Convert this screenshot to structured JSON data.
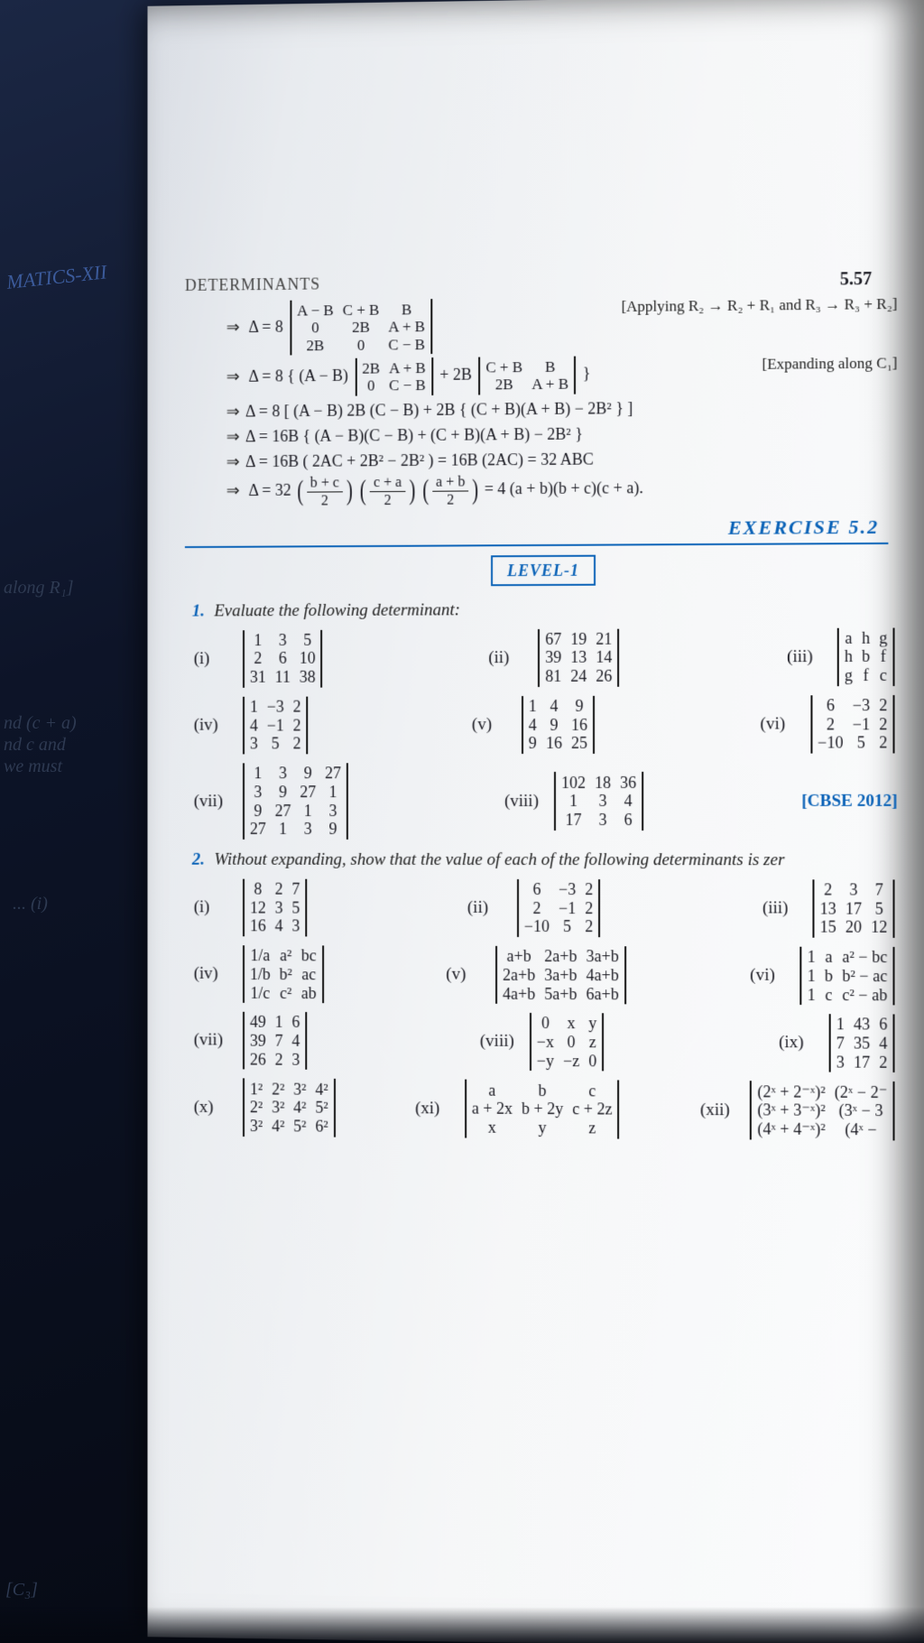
{
  "page_number": "5.57",
  "header": "DETERMINANTS",
  "side": {
    "top": "MATICS-XII",
    "mid": "along R₁]",
    "low1": "nd (c + a)",
    "low2": "nd c and",
    "low3": "we must",
    "dots": "... (i)",
    "bottom": "[C₃]"
  },
  "derivation": {
    "l1_pre": "Δ = 8",
    "l1_mat": [
      [
        "A − B",
        "C + B",
        "B"
      ],
      [
        "0",
        "2B",
        "A + B"
      ],
      [
        "2B",
        "0",
        "C − B"
      ]
    ],
    "l1_note": "[Applying R₂ → R₂ + R₁ and R₃ → R₃ + R₂]",
    "l2_pre": "Δ = 8 { (A − B)",
    "l2_m1": [
      [
        "2B",
        "A + B"
      ],
      [
        "0",
        "C − B"
      ]
    ],
    "l2_mid": " + 2B",
    "l2_m2": [
      [
        "C + B",
        "B"
      ],
      [
        "2B",
        "A + B"
      ]
    ],
    "l2_post": " }",
    "l2_note": "[Expanding along C₁]",
    "l3": "Δ = 8 [ (A − B) 2B (C − B) + 2B { (C + B)(A + B) − 2B² } ]",
    "l4": "Δ = 16B { (A − B)(C − B) + (C + B)(A + B) − 2B² }",
    "l5": "Δ = 16B ( 2AC + 2B² − 2B² ) = 16B (2AC) = 32 ABC",
    "l6_pre": "Δ = 32",
    "l6_f1n": "b + c",
    "l6_f1d": "2",
    "l6_f2n": "c + a",
    "l6_f2d": "2",
    "l6_f3n": "a + b",
    "l6_f3d": "2",
    "l6_post": " = 4 (a + b)(b + c)(c + a)."
  },
  "exercise_title": "EXERCISE 5.2",
  "level": "LEVEL-1",
  "q1": {
    "num": "1.",
    "text": "Evaluate the following determinant:",
    "items": {
      "i": {
        "lbl": "(i)",
        "m": [
          [
            "1",
            "3",
            "5"
          ],
          [
            "2",
            "6",
            "10"
          ],
          [
            "31",
            "11",
            "38"
          ]
        ]
      },
      "ii": {
        "lbl": "(ii)",
        "m": [
          [
            "67",
            "19",
            "21"
          ],
          [
            "39",
            "13",
            "14"
          ],
          [
            "81",
            "24",
            "26"
          ]
        ]
      },
      "iii": {
        "lbl": "(iii)",
        "m": [
          [
            "a",
            "h",
            "g"
          ],
          [
            "h",
            "b",
            "f"
          ],
          [
            "g",
            "f",
            "c"
          ]
        ]
      },
      "iv": {
        "lbl": "(iv)",
        "m": [
          [
            "1",
            "−3",
            "2"
          ],
          [
            "4",
            "−1",
            "2"
          ],
          [
            "3",
            "5",
            "2"
          ]
        ]
      },
      "v": {
        "lbl": "(v)",
        "m": [
          [
            "1",
            "4",
            "9"
          ],
          [
            "4",
            "9",
            "16"
          ],
          [
            "9",
            "16",
            "25"
          ]
        ]
      },
      "vi": {
        "lbl": "(vi)",
        "m": [
          [
            "6",
            "−3",
            "2"
          ],
          [
            "2",
            "−1",
            "2"
          ],
          [
            "−10",
            "5",
            "2"
          ]
        ]
      },
      "vii": {
        "lbl": "(vii)",
        "m": [
          [
            "1",
            "3",
            "9",
            "27"
          ],
          [
            "3",
            "9",
            "27",
            "1"
          ],
          [
            "9",
            "27",
            "1",
            "3"
          ],
          [
            "27",
            "1",
            "3",
            "9"
          ]
        ]
      },
      "viii": {
        "lbl": "(viii)",
        "m": [
          [
            "102",
            "18",
            "36"
          ],
          [
            "1",
            "3",
            "4"
          ],
          [
            "17",
            "3",
            "6"
          ]
        ]
      },
      "cbse": "[CBSE 2012]"
    }
  },
  "q2": {
    "num": "2.",
    "text": "Without expanding, show that the value of each of the following determinants is zer",
    "items": {
      "i": {
        "lbl": "(i)",
        "m": [
          [
            "8",
            "2",
            "7"
          ],
          [
            "12",
            "3",
            "5"
          ],
          [
            "16",
            "4",
            "3"
          ]
        ]
      },
      "ii": {
        "lbl": "(ii)",
        "m": [
          [
            "6",
            "−3",
            "2"
          ],
          [
            "2",
            "−1",
            "2"
          ],
          [
            "−10",
            "5",
            "2"
          ]
        ]
      },
      "iii": {
        "lbl": "(iii)",
        "m": [
          [
            "2",
            "3",
            "7"
          ],
          [
            "13",
            "17",
            "5"
          ],
          [
            "15",
            "20",
            "12"
          ]
        ]
      },
      "iv": {
        "lbl": "(iv)",
        "m": [
          [
            "1/a",
            "a²",
            "bc"
          ],
          [
            "1/b",
            "b²",
            "ac"
          ],
          [
            "1/c",
            "c²",
            "ab"
          ]
        ]
      },
      "v": {
        "lbl": "(v)",
        "m": [
          [
            "a+b",
            "2a+b",
            "3a+b"
          ],
          [
            "2a+b",
            "3a+b",
            "4a+b"
          ],
          [
            "4a+b",
            "5a+b",
            "6a+b"
          ]
        ]
      },
      "vi": {
        "lbl": "(vi)",
        "m": [
          [
            "1",
            "a",
            "a² − bc"
          ],
          [
            "1",
            "b",
            "b² − ac"
          ],
          [
            "1",
            "c",
            "c² − ab"
          ]
        ]
      },
      "vii": {
        "lbl": "(vii)",
        "m": [
          [
            "49",
            "1",
            "6"
          ],
          [
            "39",
            "7",
            "4"
          ],
          [
            "26",
            "2",
            "3"
          ]
        ]
      },
      "viii": {
        "lbl": "(viii)",
        "m": [
          [
            "0",
            "x",
            "y"
          ],
          [
            "−x",
            "0",
            "z"
          ],
          [
            "−y",
            "−z",
            "0"
          ]
        ]
      },
      "ix": {
        "lbl": "(ix)",
        "m": [
          [
            "1",
            "43",
            "6"
          ],
          [
            "7",
            "35",
            "4"
          ],
          [
            "3",
            "17",
            "2"
          ]
        ]
      },
      "x": {
        "lbl": "(x)",
        "m": [
          [
            "1²",
            "2²",
            "3²",
            "4²"
          ],
          [
            "2²",
            "3²",
            "4²",
            "5²"
          ],
          [
            "3²",
            "4²",
            "5²",
            "6²"
          ]
        ]
      },
      "xi": {
        "lbl": "(xi)",
        "m": [
          [
            "a",
            "b",
            "c"
          ],
          [
            "a + 2x",
            "b + 2y",
            "c + 2z"
          ],
          [
            "x",
            "y",
            "z"
          ]
        ]
      },
      "xii": {
        "lbl": "(xii)",
        "m": [
          [
            "(2ˣ + 2⁻ˣ)²",
            "(2ˣ − 2⁻"
          ],
          [
            "(3ˣ + 3⁻ˣ)²",
            "(3ˣ − 3"
          ],
          [
            "(4ˣ + 4⁻ˣ)²",
            "(4ˣ −"
          ]
        ]
      }
    }
  },
  "style": {
    "accent": "#0a62b7",
    "page_bg": "#f6f7f8",
    "desk_bg": "#0a0c18",
    "body_font_size": 18,
    "title_font_size": 22
  }
}
